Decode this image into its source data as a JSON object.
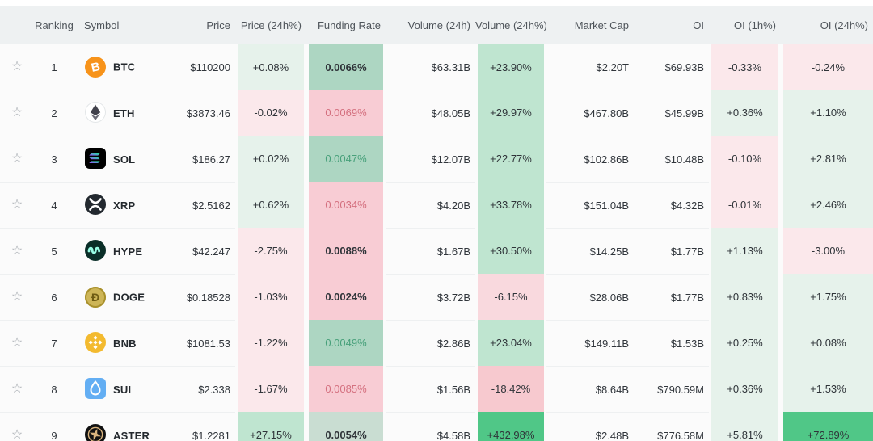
{
  "ui": {
    "favorite_icon": "☆"
  },
  "palette": {
    "g1": "#e6f2eb",
    "g2": "#bfe5d0",
    "g3": "#50c787",
    "gf": "#add6c2",
    "ga": "#c9ddd2",
    "r1": "#fbe8eb",
    "r1b": "#f9d9de",
    "r2": "#f8ccd4",
    "r2b": "#f7c9cf"
  },
  "text_palette": {
    "dark": "#2f3439",
    "red": "#d4707f",
    "green": "#47a07a"
  },
  "columns": [
    {
      "key": "favorite",
      "label": "",
      "align": "center"
    },
    {
      "key": "ranking",
      "label": "Ranking",
      "align": "center"
    },
    {
      "key": "symbol",
      "label": "Symbol",
      "align": "left"
    },
    {
      "key": "price",
      "label": "Price",
      "align": "right"
    },
    {
      "key": "price-24h",
      "label": "Price (24h%)",
      "align": "right"
    },
    {
      "key": "funding-rate",
      "label": "Funding Rate",
      "align": "right"
    },
    {
      "key": "volume-24h",
      "label": "Volume (24h)",
      "align": "right"
    },
    {
      "key": "volume-24h-pct",
      "label": "Volume (24h%)",
      "align": "right"
    },
    {
      "key": "market-cap",
      "label": "Market Cap",
      "align": "right"
    },
    {
      "key": "oi",
      "label": "OI",
      "align": "right"
    },
    {
      "key": "oi-1h",
      "label": "OI (1h%)",
      "align": "right"
    },
    {
      "key": "oi-24h",
      "label": "OI (24h%)",
      "align": "right"
    }
  ],
  "coin_colors": {
    "btc": "#F7931A",
    "eth_dark": "#42424c",
    "eth_light": "#6b6b76",
    "sol_grad_start": "#9945FF",
    "sol_grad_end": "#14F195",
    "xrp_bg": "#23292f",
    "hype_bg": "#0a2e28",
    "hype_mint": "#97fce4",
    "doge_bg": "#cdb557",
    "doge_ring": "#a8902c",
    "doge_glyph": "#6e5b12",
    "bnb": "#F3BA2F",
    "sui": "#63aef3",
    "aster_bg": "#111111",
    "aster_star": "#d9b47e"
  },
  "rows": [
    {
      "rank": "1",
      "symbol": "BTC",
      "icon": "btc",
      "price": "$110200",
      "price_24h": {
        "text": "+0.08%",
        "tone": "g1"
      },
      "funding_rate": {
        "text": "0.0066%",
        "tone": "gf",
        "text_tone": "dark",
        "bold": true
      },
      "volume_24h": "$63.31B",
      "volume_24h_pct": {
        "text": "+23.90%",
        "tone": "g2"
      },
      "market_cap": "$2.20T",
      "oi": "$69.93B",
      "oi_1h": {
        "text": "-0.33%",
        "tone": "r1"
      },
      "oi_24h": {
        "text": "-0.24%",
        "tone": "r1"
      }
    },
    {
      "rank": "2",
      "symbol": "ETH",
      "icon": "eth",
      "price": "$3873.46",
      "price_24h": {
        "text": "-0.02%",
        "tone": "r1"
      },
      "funding_rate": {
        "text": "0.0069%",
        "tone": "r2",
        "text_tone": "red"
      },
      "volume_24h": "$48.05B",
      "volume_24h_pct": {
        "text": "+29.97%",
        "tone": "g2"
      },
      "market_cap": "$467.80B",
      "oi": "$45.99B",
      "oi_1h": {
        "text": "+0.36%",
        "tone": "g1"
      },
      "oi_24h": {
        "text": "+1.10%",
        "tone": "g1"
      }
    },
    {
      "rank": "3",
      "symbol": "SOL",
      "icon": "sol",
      "price": "$186.27",
      "price_24h": {
        "text": "+0.02%",
        "tone": "g1"
      },
      "funding_rate": {
        "text": "0.0047%",
        "tone": "gf",
        "text_tone": "green"
      },
      "volume_24h": "$12.07B",
      "volume_24h_pct": {
        "text": "+22.77%",
        "tone": "g2"
      },
      "market_cap": "$102.86B",
      "oi": "$10.48B",
      "oi_1h": {
        "text": "-0.10%",
        "tone": "r1"
      },
      "oi_24h": {
        "text": "+2.81%",
        "tone": "g1"
      }
    },
    {
      "rank": "4",
      "symbol": "XRP",
      "icon": "xrp",
      "price": "$2.5162",
      "price_24h": {
        "text": "+0.62%",
        "tone": "g1"
      },
      "funding_rate": {
        "text": "0.0034%",
        "tone": "r2",
        "text_tone": "red"
      },
      "volume_24h": "$4.20B",
      "volume_24h_pct": {
        "text": "+33.78%",
        "tone": "g2"
      },
      "market_cap": "$151.04B",
      "oi": "$4.32B",
      "oi_1h": {
        "text": "-0.01%",
        "tone": "r1"
      },
      "oi_24h": {
        "text": "+2.46%",
        "tone": "g1"
      }
    },
    {
      "rank": "5",
      "symbol": "HYPE",
      "icon": "hype",
      "price": "$42.247",
      "price_24h": {
        "text": "-2.75%",
        "tone": "r1"
      },
      "funding_rate": {
        "text": "0.0088%",
        "tone": "r2",
        "text_tone": "dark",
        "bold": true
      },
      "volume_24h": "$1.67B",
      "volume_24h_pct": {
        "text": "+30.50%",
        "tone": "g2"
      },
      "market_cap": "$14.25B",
      "oi": "$1.77B",
      "oi_1h": {
        "text": "+1.13%",
        "tone": "g1"
      },
      "oi_24h": {
        "text": "-3.00%",
        "tone": "r1"
      }
    },
    {
      "rank": "6",
      "symbol": "DOGE",
      "icon": "doge",
      "price": "$0.18528",
      "price_24h": {
        "text": "-1.03%",
        "tone": "r1"
      },
      "funding_rate": {
        "text": "0.0024%",
        "tone": "r2",
        "text_tone": "dark",
        "bold": true
      },
      "volume_24h": "$3.72B",
      "volume_24h_pct": {
        "text": "-6.15%",
        "tone": "r1b"
      },
      "market_cap": "$28.06B",
      "oi": "$1.77B",
      "oi_1h": {
        "text": "+0.83%",
        "tone": "g1"
      },
      "oi_24h": {
        "text": "+1.75%",
        "tone": "g1"
      }
    },
    {
      "rank": "7",
      "symbol": "BNB",
      "icon": "bnb",
      "price": "$1081.53",
      "price_24h": {
        "text": "-1.22%",
        "tone": "r1"
      },
      "funding_rate": {
        "text": "0.0049%",
        "tone": "gf",
        "text_tone": "green"
      },
      "volume_24h": "$2.86B",
      "volume_24h_pct": {
        "text": "+23.04%",
        "tone": "g2"
      },
      "market_cap": "$149.11B",
      "oi": "$1.53B",
      "oi_1h": {
        "text": "+0.25%",
        "tone": "g1"
      },
      "oi_24h": {
        "text": "+0.08%",
        "tone": "g1"
      }
    },
    {
      "rank": "8",
      "symbol": "SUI",
      "icon": "sui",
      "price": "$2.338",
      "price_24h": {
        "text": "-1.67%",
        "tone": "r1"
      },
      "funding_rate": {
        "text": "0.0085%",
        "tone": "r2",
        "text_tone": "red"
      },
      "volume_24h": "$1.56B",
      "volume_24h_pct": {
        "text": "-18.42%",
        "tone": "r2b"
      },
      "market_cap": "$8.64B",
      "oi": "$790.59M",
      "oi_1h": {
        "text": "+0.36%",
        "tone": "g1"
      },
      "oi_24h": {
        "text": "+1.53%",
        "tone": "g1"
      }
    },
    {
      "rank": "9",
      "symbol": "ASTER",
      "icon": "aster",
      "price": "$1.2281",
      "price_24h": {
        "text": "+27.15%",
        "tone": "g2"
      },
      "funding_rate": {
        "text": "0.0054%",
        "tone": "ga",
        "text_tone": "dark",
        "bold": true
      },
      "volume_24h": "$4.58B",
      "volume_24h_pct": {
        "text": "+432.98%",
        "tone": "g3"
      },
      "market_cap": "$2.48B",
      "oi": "$776.58M",
      "oi_1h": {
        "text": "+5.81%",
        "tone": "g1"
      },
      "oi_24h": {
        "text": "+72.89%",
        "tone": "g3"
      }
    }
  ]
}
